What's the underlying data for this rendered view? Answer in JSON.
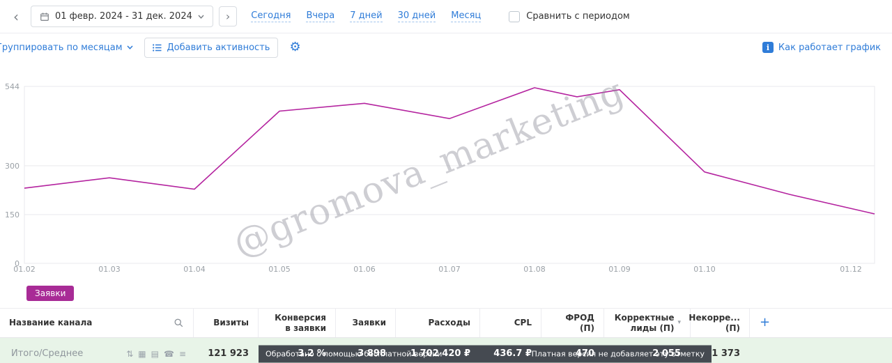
{
  "colors": {
    "blue": "#2f7cd8",
    "magenta": "#a82b96",
    "line": "#b4239f",
    "total_row_bg": "#e8f4e8"
  },
  "icons": {
    "gear": "⚙",
    "info": "i",
    "sort_caret": "▾",
    "row": [
      "⇅",
      "▦",
      "▤",
      "☎",
      "≡"
    ]
  },
  "topbar": {
    "prev": "‹",
    "next": "›",
    "date_range": "01 февр. 2024 - 31 дек. 2024",
    "quick_links": [
      {
        "label": "Сегодня"
      },
      {
        "label": "Вчера"
      },
      {
        "label": "7 дней"
      },
      {
        "label": "30 дней"
      },
      {
        "label": "Месяц"
      }
    ],
    "compare_label": "Сравнить с периодом"
  },
  "toolbar": {
    "group_by": "Группировать по месяцам",
    "add_activity": "Добавить активность",
    "how_it_works": "Как работает график"
  },
  "chart_data": {
    "type": "line",
    "title": "",
    "xlabel": "",
    "ylabel": "",
    "ylim": [
      0,
      544
    ],
    "xlim": [
      0,
      10
    ],
    "grid": true,
    "legend_position": "bottom-left",
    "y_ticks": [
      544,
      300,
      150,
      0
    ],
    "x_ticks": [
      {
        "t": 0,
        "label": "01.02"
      },
      {
        "t": 1,
        "label": "01.03"
      },
      {
        "t": 2,
        "label": "01.04"
      },
      {
        "t": 3,
        "label": "01.05"
      },
      {
        "t": 4,
        "label": "01.06"
      },
      {
        "t": 5,
        "label": "01.07"
      },
      {
        "t": 6,
        "label": "01.08"
      },
      {
        "t": 7,
        "label": "01.09"
      },
      {
        "t": 8,
        "label": "01.10"
      },
      {
        "t": 10,
        "label": "01.12",
        "dx": -34
      }
    ],
    "series": [
      {
        "name": "Заявки",
        "color": "#b4239f",
        "points": [
          {
            "t": 0,
            "v": 231
          },
          {
            "t": 1,
            "v": 263
          },
          {
            "t": 2,
            "v": 228
          },
          {
            "t": 3,
            "v": 468
          },
          {
            "t": 4,
            "v": 492
          },
          {
            "t": 5,
            "v": 445
          },
          {
            "t": 6,
            "v": 540
          },
          {
            "t": 6.5,
            "v": 512
          },
          {
            "t": 7,
            "v": 534
          },
          {
            "t": 8,
            "v": 281
          },
          {
            "t": 9,
            "v": 212
          },
          {
            "t": 10,
            "v": 152
          }
        ]
      }
    ],
    "legend": [
      "Заявки"
    ]
  },
  "watermark": "@gromova_marketing",
  "table": {
    "headers": [
      {
        "label": "Название канала"
      },
      {
        "label": "Визиты"
      },
      {
        "label": "Конверсия в заявки"
      },
      {
        "label": "Заявки"
      },
      {
        "label": "Расходы"
      },
      {
        "label": "CPL"
      },
      {
        "label": "ФРОД (П)"
      },
      {
        "label": "Корректные лиды (П)"
      },
      {
        "label": "Некорре... (П)"
      },
      {
        "label": "+"
      }
    ],
    "total_row": {
      "name": "Итого/Среднее",
      "values": [
        "121 923",
        "3.2 %",
        "3 898",
        "1 702 420 ₽",
        "436.7 ₽",
        "470",
        "2 055",
        "1 373"
      ]
    }
  },
  "processing_overlay": {
    "left": "Обработано с помощью бесплатной версии",
    "right": "Платная версия не добавляет эту отметку"
  }
}
